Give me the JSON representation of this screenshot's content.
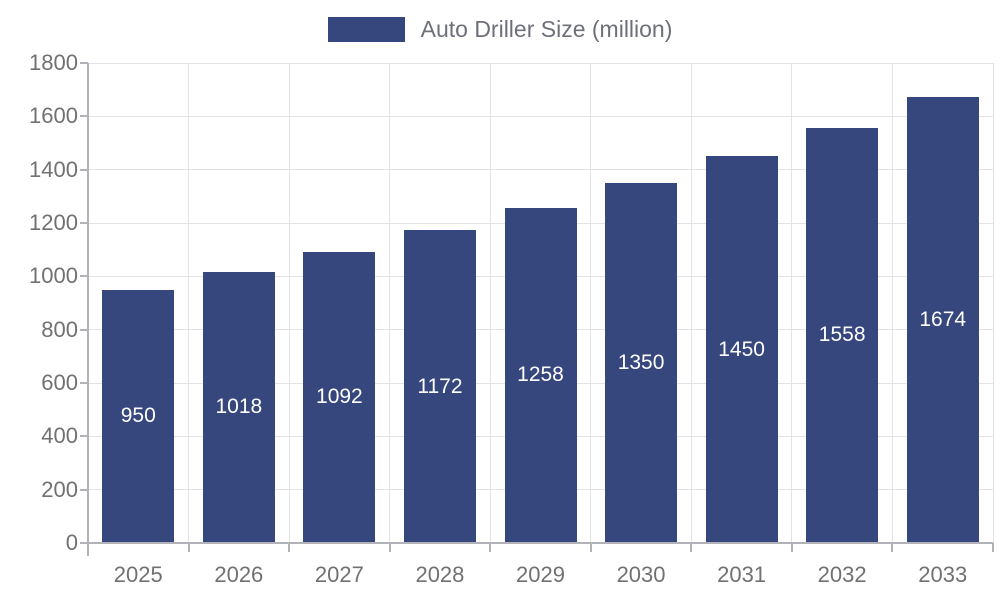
{
  "legend": {
    "label": "Auto Driller Size (million)"
  },
  "chart_data": {
    "type": "bar",
    "title": "Auto Driller Size (million)",
    "categories": [
      "2025",
      "2026",
      "2027",
      "2028",
      "2029",
      "2030",
      "2031",
      "2032",
      "2033"
    ],
    "series": [
      {
        "name": "Auto Driller Size (million)",
        "color": "#36477E",
        "values": [
          950,
          1018,
          1092,
          1172,
          1258,
          1350,
          1450,
          1558,
          1674
        ]
      }
    ],
    "value_labels_position": "inside-center",
    "value_labels_color": "#FFFFFF",
    "xlabel": "",
    "ylabel": "",
    "ylim": [
      0,
      1800
    ],
    "yticks": [
      0,
      200,
      400,
      600,
      800,
      1000,
      1200,
      1400,
      1600,
      1800
    ],
    "grid": true,
    "legend_position": "top-center"
  },
  "colors": {
    "bar": "#36477E",
    "grid_line": "#E3E3E4",
    "axis_line": "#B1B3B8",
    "tick_label": "#717171",
    "legend_text": "#6E7079",
    "value_label": "#FFFFFF",
    "background": "#FFFFFF"
  }
}
